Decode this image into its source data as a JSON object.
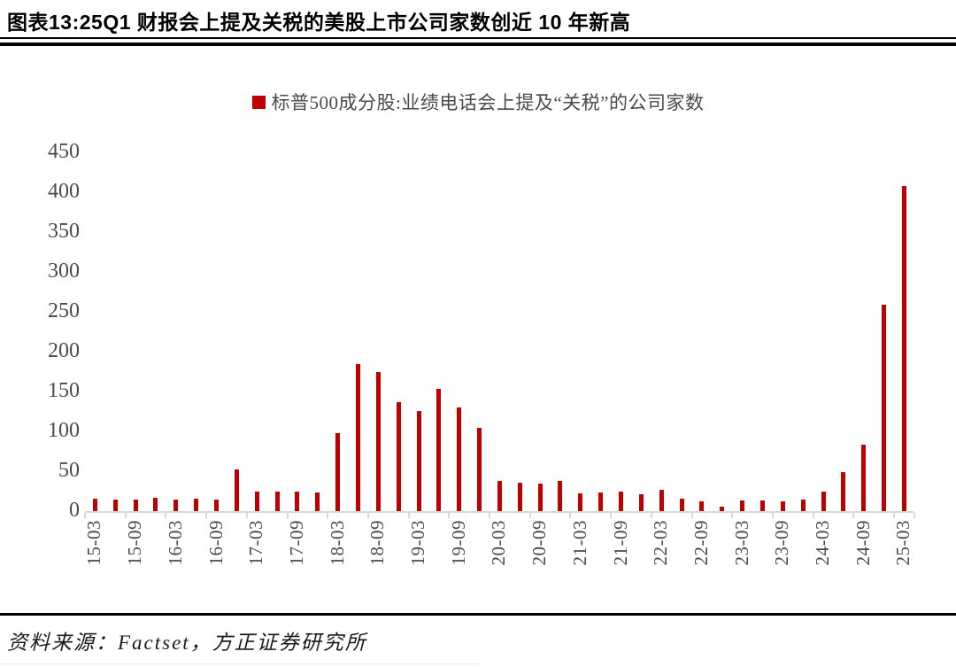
{
  "header": {
    "title": "图表13:25Q1 财报会上提及关税的美股上市公司家数创近 10 年新高"
  },
  "legend": {
    "label": "标普500成分股:业绩电话会上提及“关税”的公司家数",
    "marker_color": "#c00000"
  },
  "footer": {
    "source": "资料来源：Factset，方正证券研究所"
  },
  "chart_data": {
    "type": "bar",
    "title": "图表13:25Q1 财报会上提及关税的美股上市公司家数创近 10 年新高",
    "legend_entries": [
      "标普500成分股:业绩电话会上提及“关税”的公司家数"
    ],
    "legend_position": "top",
    "xlabel": "",
    "ylabel": "",
    "ylim": [
      0,
      450
    ],
    "y_ticks": [
      0,
      50,
      100,
      150,
      200,
      250,
      300,
      350,
      400,
      450
    ],
    "grid": false,
    "bar_color": "#c00000",
    "axis_color": "#d9d9d9",
    "categories": [
      "15-03",
      "15-06",
      "15-09",
      "15-12",
      "16-03",
      "16-06",
      "16-09",
      "16-12",
      "17-03",
      "17-06",
      "17-09",
      "17-12",
      "18-03",
      "18-06",
      "18-09",
      "18-12",
      "19-03",
      "19-06",
      "19-09",
      "19-12",
      "20-03",
      "20-06",
      "20-09",
      "20-12",
      "21-03",
      "21-06",
      "21-09",
      "21-12",
      "22-03",
      "22-06",
      "22-09",
      "22-12",
      "23-03",
      "23-06",
      "23-09",
      "23-12",
      "24-03",
      "24-06",
      "24-09",
      "24-12",
      "25-03"
    ],
    "values": [
      16,
      14,
      15,
      17,
      14,
      16,
      14,
      52,
      25,
      24,
      25,
      23,
      98,
      185,
      175,
      137,
      126,
      153,
      130,
      105,
      38,
      36,
      35,
      38,
      22,
      23,
      25,
      21,
      27,
      16,
      12,
      6,
      13,
      13,
      12,
      14,
      24,
      49,
      83,
      259,
      408
    ],
    "x_tick_labels": [
      "15-03",
      "15-09",
      "16-03",
      "16-09",
      "17-03",
      "17-09",
      "18-03",
      "18-09",
      "19-03",
      "19-09",
      "20-03",
      "20-09",
      "21-03",
      "21-09",
      "22-03",
      "22-09",
      "23-03",
      "23-09",
      "24-03",
      "24-09",
      "25-03"
    ]
  }
}
